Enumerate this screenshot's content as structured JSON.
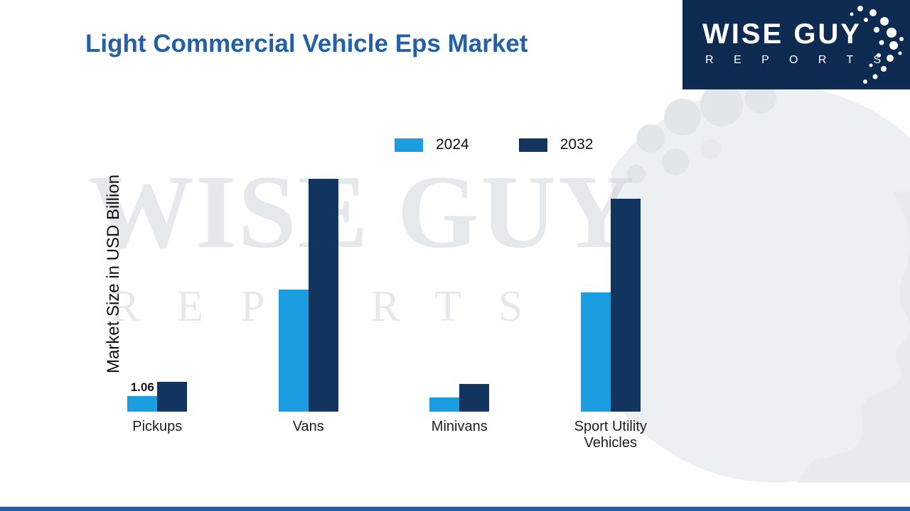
{
  "header": {
    "title": "Light Commercial Vehicle Eps Market",
    "logo": {
      "line1": "WISE GUY",
      "line2": "R E P O R T S"
    }
  },
  "watermark": {
    "line1": "WISE GUY",
    "line2": "REPORTS"
  },
  "colors": {
    "accent_blue": "#2460a7",
    "series_2024": "#1b9de2",
    "series_2032": "#12355f",
    "logo_bg": "#0d2b50",
    "bottom_strip": "#2460a7"
  },
  "chart_data": {
    "type": "bar",
    "title": "Light Commercial Vehicle Eps Market",
    "ylabel": "Market Size in USD Billion",
    "xlabel": "",
    "ylim": [
      0,
      16
    ],
    "grid": false,
    "legend_position": "top",
    "categories": [
      "Pickups",
      "Vans",
      "Minivans",
      "Sport Utility Vehicles"
    ],
    "series": [
      {
        "name": "2024",
        "color": "#1b9de2",
        "values": [
          1.06,
          8.2,
          0.95,
          8.0
        ]
      },
      {
        "name": "2032",
        "color": "#12355f",
        "values": [
          2.0,
          15.6,
          1.85,
          14.3
        ]
      }
    ],
    "annotations": [
      {
        "series": "2024",
        "category": "Pickups",
        "text": "1.06"
      }
    ]
  }
}
